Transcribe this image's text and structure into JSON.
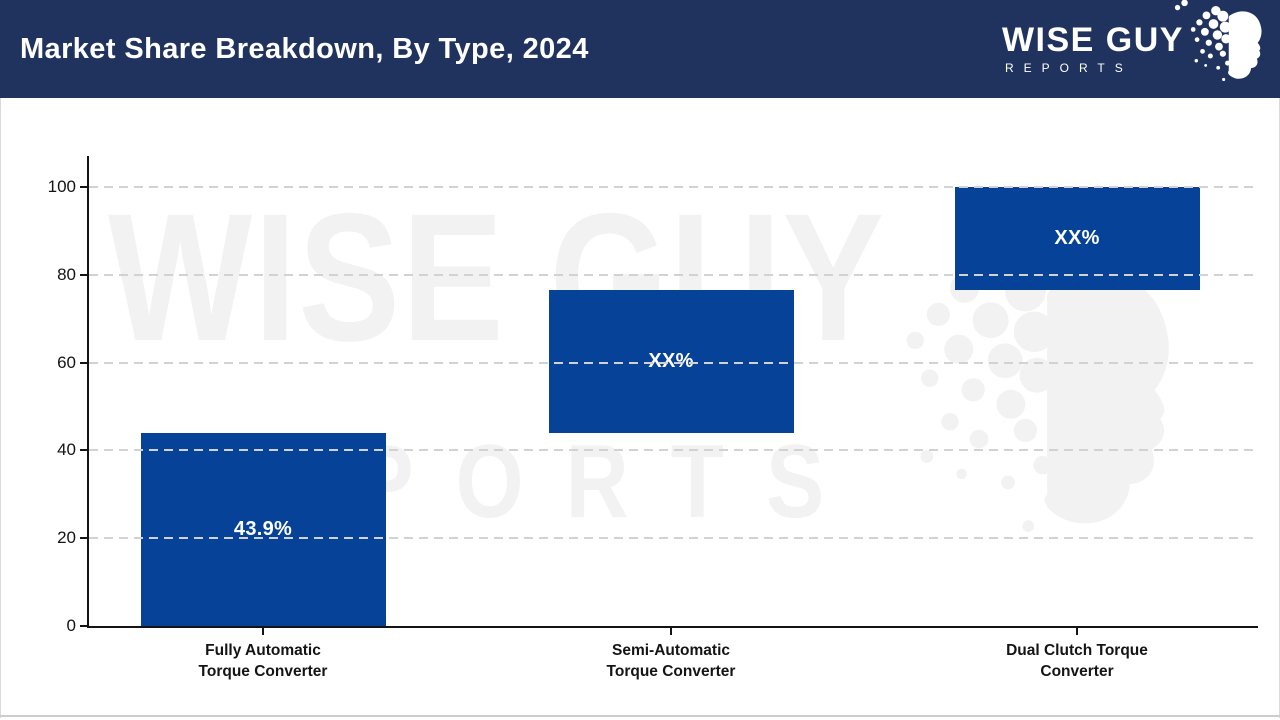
{
  "header": {
    "title": "Market Share Breakdown, By Type, 2024",
    "logo": {
      "name": "WISE GUY",
      "sub": "REPORTS"
    }
  },
  "watermark": {
    "line1": "WISE GUY",
    "line2": "REPORTS"
  },
  "chart_data": {
    "type": "bar",
    "subtype": "floating-segment-waterfall",
    "title": "Market Share Breakdown, By Type, 2024",
    "xlabel": "",
    "ylabel": "",
    "categories": [
      "Fully Automatic\nTorque Converter",
      "Semi-Automatic\nTorque Converter",
      "Dual Clutch Torque\nConverter"
    ],
    "segments": [
      {
        "category": "Fully Automatic Torque Converter",
        "start": 0,
        "end": 43.9,
        "label": "43.9%"
      },
      {
        "category": "Semi-Automatic Torque Converter",
        "start": 43.9,
        "end": 76.6,
        "label": "XX%"
      },
      {
        "category": "Dual Clutch Torque Converter",
        "start": 76.6,
        "end": 100,
        "label": "XX%"
      }
    ],
    "yticks": [
      0,
      20,
      40,
      60,
      80,
      100
    ],
    "ylim": [
      0,
      106
    ],
    "grid": "horizontal-dashed-over-bars",
    "legend": "none",
    "bar_color": "#064298",
    "bar_label_color": "#ffffff",
    "axis_color": "#141414",
    "grid_color": "#d2d2d2",
    "header_color": "#20335f",
    "watermark_color": "#f2f2f2"
  }
}
